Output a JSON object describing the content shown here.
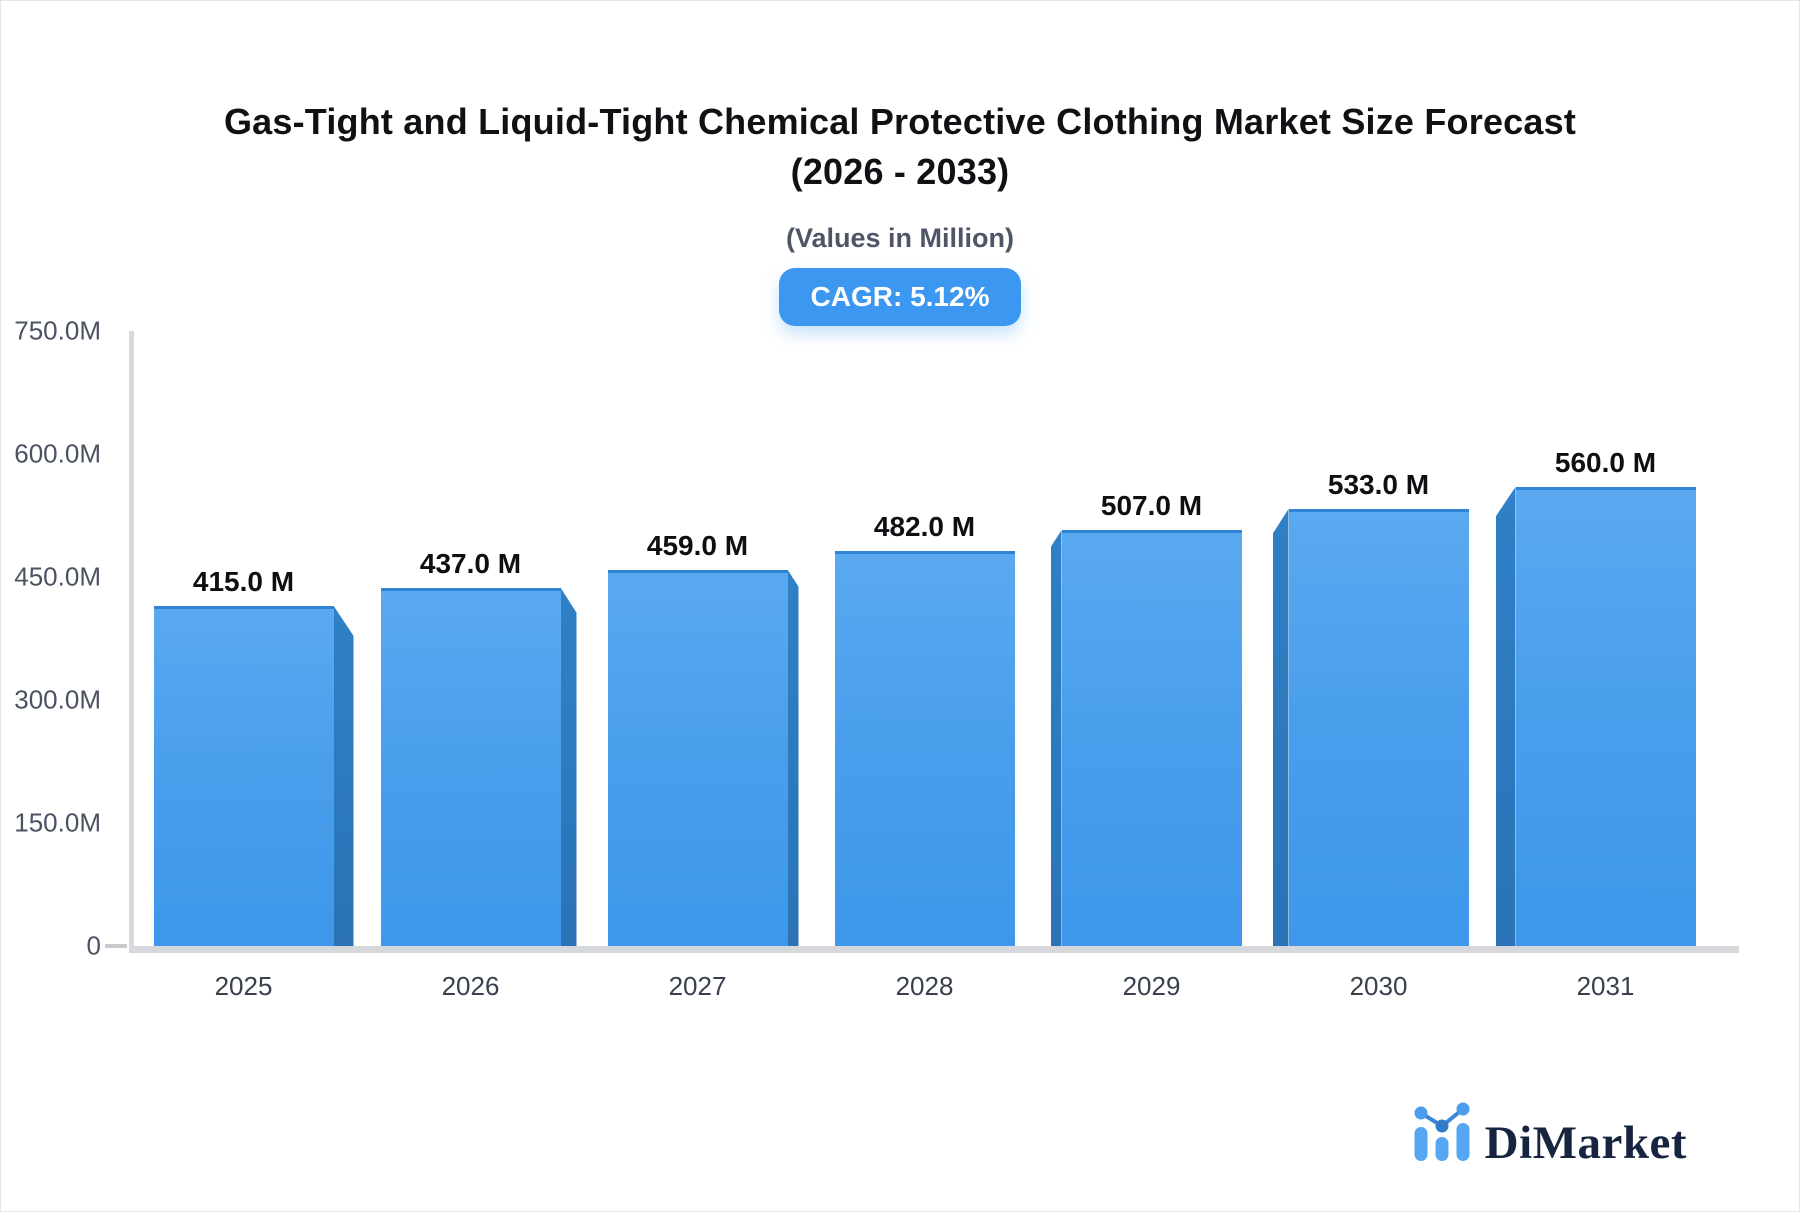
{
  "header": {
    "title_line1": "Gas-Tight and Liquid-Tight Chemical Protective Clothing Market Size Forecast",
    "title_line2": "(2026 - 2033)",
    "subtitle": "(Values in Million)",
    "cagr_badge": "CAGR: 5.12%"
  },
  "chart_data": {
    "type": "bar",
    "title": "Gas-Tight and Liquid-Tight Chemical Protective Clothing Market Size Forecast (2026 - 2033)",
    "unit": "Million",
    "categories": [
      "2025",
      "2026",
      "2027",
      "2028",
      "2029",
      "2030",
      "2031"
    ],
    "values": [
      415,
      437,
      459,
      482,
      507,
      533,
      560
    ],
    "value_labels": [
      "415.0 M",
      "437.0 M",
      "459.0 M",
      "482.0 M",
      "507.0 M",
      "533.0 M",
      "560.0 M"
    ],
    "ylim": [
      0,
      750
    ],
    "yticks": [
      0,
      150,
      300,
      450,
      600,
      750
    ],
    "ytick_labels": [
      "0",
      "150.0M",
      "300.0M",
      "450.0M",
      "600.0M",
      "750.0M"
    ],
    "grid": false,
    "legend": false,
    "style": "3d-perspective-bars",
    "bar_color": "#4A9FEC",
    "bar_side_color": "#2B73B6",
    "cagr_percent": 5.12
  },
  "branding": {
    "logo_text": "DiMarket",
    "logo_icon": "bar-chart-with-trend-dots"
  },
  "colors": {
    "badge_bg": "#3B97EF",
    "title_text": "#101114",
    "subtitle_text": "#4E5666",
    "axis_gray": "#D9DADC",
    "ytick_text": "#4B5363",
    "xtick_text": "#39404D",
    "logo_navy": "#16243F",
    "logo_blue": "#55A7F3"
  }
}
